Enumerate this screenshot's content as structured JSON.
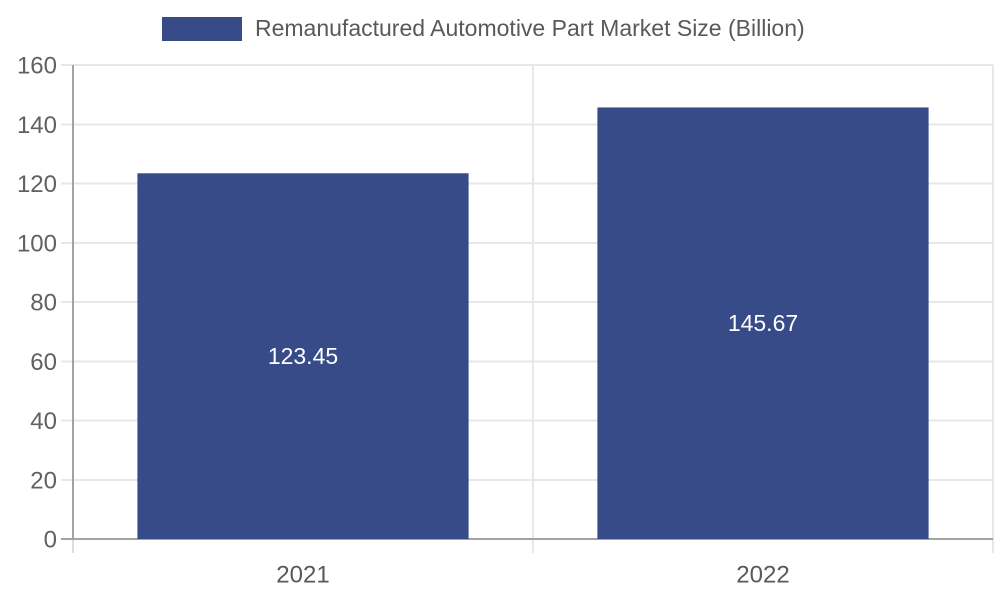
{
  "chart_data": {
    "type": "bar",
    "title": "",
    "categories": [
      "2021",
      "2022"
    ],
    "series": [
      {
        "name": "Remanufactured Automotive Part Market Size (Billion)",
        "values": [
          123.45,
          145.67
        ],
        "labels": [
          "123.45",
          "145.67"
        ]
      }
    ],
    "xlabel": "",
    "ylabel": "",
    "ylim": [
      0,
      160
    ],
    "yticks": [
      0,
      20,
      40,
      60,
      80,
      100,
      120,
      140,
      160
    ],
    "grid": true,
    "legend_position": "top",
    "colors": {
      "bar": "#374b88",
      "grid": "#e7e7e7",
      "axis": "#a3a3a3",
      "minor_tick": "#dcdce4",
      "y_tick_label": "#616161",
      "x_tick_label": "#595959",
      "legend_text": "#595959",
      "bar_label": "#ffffff",
      "background": "#ffffff"
    }
  }
}
